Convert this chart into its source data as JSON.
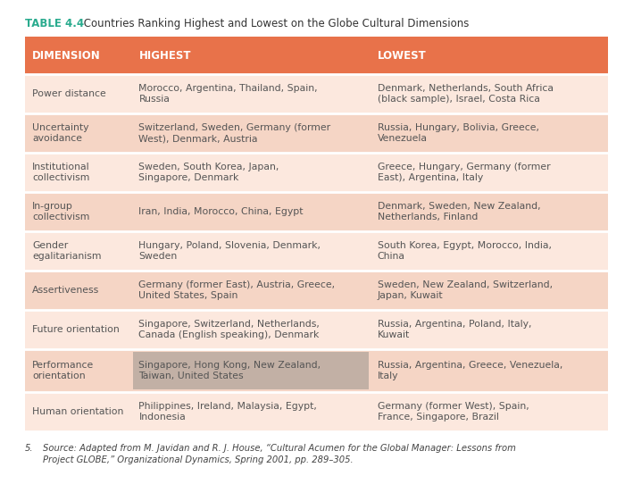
{
  "title_bold": "TABLE 4.4",
  "title_rest": " Countries Ranking Highest and Lowest on the Globe Cultural Dimensions",
  "title_color": "#2aab8e",
  "title_rest_color": "#333333",
  "header_bg": "#e8724a",
  "header_text_color": "#ffffff",
  "row_bg_even": "#fce8de",
  "row_bg_odd": "#f5d5c5",
  "highlight_bg": "#c2b0a5",
  "body_text_color": "#555555",
  "col_headers": [
    "DIMENSION",
    "HIGHEST",
    "LOWEST"
  ],
  "rows": [
    {
      "dimension": "Power distance",
      "highest": "Morocco, Argentina, Thailand, Spain,\nRussia",
      "lowest": "Denmark, Netherlands, South Africa\n(black sample), Israel, Costa Rica",
      "highlight_highest": false
    },
    {
      "dimension": "Uncertainty\navoidance",
      "highest": "Switzerland, Sweden, Germany (former\nWest), Denmark, Austria",
      "lowest": "Russia, Hungary, Bolivia, Greece,\nVenezuela",
      "highlight_highest": false
    },
    {
      "dimension": "Institutional\ncollectivism",
      "highest": "Sweden, South Korea, Japan,\nSingapore, Denmark",
      "lowest": "Greece, Hungary, Germany (former\nEast), Argentina, Italy",
      "highlight_highest": false
    },
    {
      "dimension": "In-group\ncollectivism",
      "highest": "Iran, India, Morocco, China, Egypt",
      "lowest": "Denmark, Sweden, New Zealand,\nNetherlands, Finland",
      "highlight_highest": false
    },
    {
      "dimension": "Gender\negalitarianism",
      "highest": "Hungary, Poland, Slovenia, Denmark,\nSweden",
      "lowest": "South Korea, Egypt, Morocco, India,\nChina",
      "highlight_highest": false
    },
    {
      "dimension": "Assertiveness",
      "highest": "Germany (former East), Austria, Greece,\nUnited States, Spain",
      "lowest": "Sweden, New Zealand, Switzerland,\nJapan, Kuwait",
      "highlight_highest": false
    },
    {
      "dimension": "Future orientation",
      "highest": "Singapore, Switzerland, Netherlands,\nCanada (English speaking), Denmark",
      "lowest": "Russia, Argentina, Poland, Italy,\nKuwait",
      "highlight_highest": false
    },
    {
      "dimension": "Performance\norientation",
      "highest": "Singapore, Hong Kong, New Zealand,\nTaiwan, United States",
      "lowest": "Russia, Argentina, Greece, Venezuela,\nItaly",
      "highlight_highest": true
    },
    {
      "dimension": "Human orientation",
      "highest": "Philippines, Ireland, Malaysia, Egypt,\nIndonesia",
      "lowest": "Germany (former West), Spain,\nFrance, Singapore, Brazil",
      "highlight_highest": false
    }
  ],
  "footnote_num": "5.",
  "footnote_text": "Source: Adapted from M. Javidan and R. J. House, “Cultural Acumen for the Global Manager: Lessons from\nProject GLOBE,” Organizational Dynamics, Spring 2001, pp. 289–305.",
  "figsize": [
    7.09,
    5.61
  ],
  "dpi": 100
}
